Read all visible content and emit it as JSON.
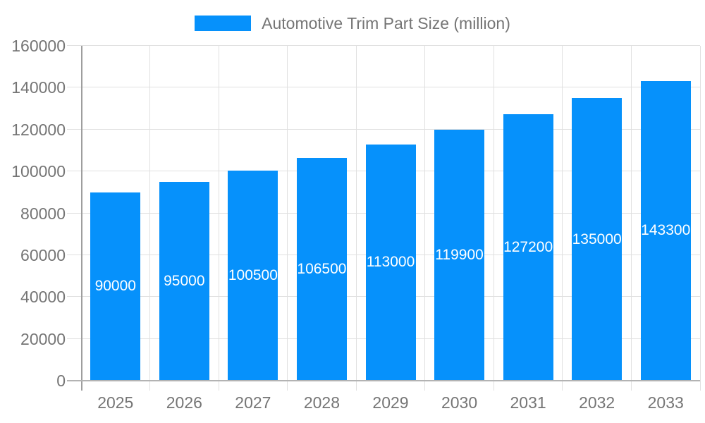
{
  "legend": {
    "label": "Automotive Trim Part Size (million)"
  },
  "chart_data": {
    "type": "bar",
    "title": "Automotive Trim Part Size (million)",
    "categories": [
      "2025",
      "2026",
      "2027",
      "2028",
      "2029",
      "2030",
      "2031",
      "2032",
      "2033"
    ],
    "series": [
      {
        "name": "Automotive Trim Part Size (million)",
        "values": [
          90000,
          95000,
          100500,
          106500,
          113000,
          119900,
          127200,
          135000,
          143300
        ]
      }
    ],
    "bar_value_labels": [
      "90000",
      "95000",
      "100500",
      "106500",
      "113000",
      "119900",
      "127200",
      "135000",
      "143300"
    ],
    "xlabel": "",
    "ylabel": "",
    "ylim": [
      0,
      160000
    ],
    "yticks": [
      0,
      20000,
      40000,
      60000,
      80000,
      100000,
      120000,
      140000,
      160000
    ],
    "grid": true,
    "legend_position": "top",
    "colors": {
      "bar": "#0691fb",
      "bar_label": "#ffffff",
      "axis_text": "#757575",
      "grid_line": "#e0e0e0",
      "y_axis_line": "#9e9e9e",
      "x_axis_line": "#b3b3b3",
      "background": "#ffffff"
    }
  }
}
